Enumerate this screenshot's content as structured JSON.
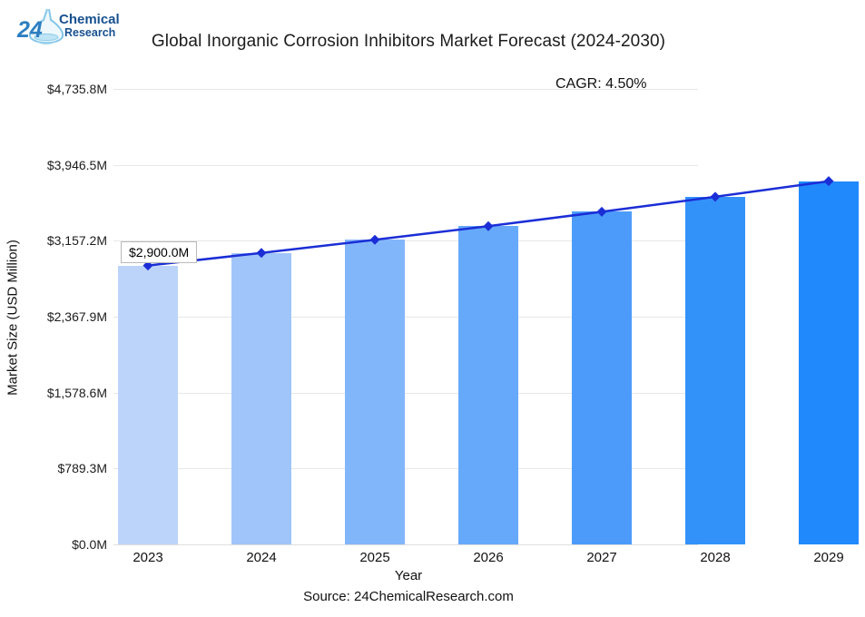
{
  "logo": {
    "number": "24",
    "line1": "Chemical",
    "line2": "Research"
  },
  "header": {
    "title": "Global Inorganic Corrosion Inhibitors Market Forecast (2024-2030)",
    "cagr_label": "CAGR: 4.50%"
  },
  "axes": {
    "y_title": "Market Size (USD Million)",
    "x_title": "Year"
  },
  "tooltip": {
    "text": "$2,900.0M"
  },
  "footer": {
    "source": "Source: 24ChemicalResearch.com"
  },
  "chart_data": {
    "type": "bar",
    "title": "Global Inorganic Corrosion Inhibitors Market Forecast (2024-2030)",
    "xlabel": "Year",
    "ylabel": "Market Size (USD Million)",
    "unit": "USD Million",
    "cagr_percent": 4.5,
    "categories": [
      "2023",
      "2024",
      "2025",
      "2026",
      "2027",
      "2028",
      "2029"
    ],
    "values": [
      2900.0,
      3030.5,
      3166.9,
      3309.4,
      3458.3,
      3613.9,
      3776.6
    ],
    "trend_line": {
      "overlaid_on_bars": true,
      "marker": "diamond"
    },
    "annotation": {
      "text": "$2,900.0M",
      "category": "2023"
    },
    "y_ticks": [
      0.0,
      789.3,
      1578.6,
      2367.9,
      3157.2,
      3946.5,
      4735.8
    ],
    "y_tick_labels": [
      "$0.0M",
      "$789.3M",
      "$1,578.6M",
      "$2,367.9M",
      "$3,157.2M",
      "$3,946.5M",
      "$4,735.8M"
    ],
    "ylim": [
      0,
      4735.8
    ],
    "grid": true,
    "legend": "none",
    "bar_colors": [
      "#bcd4fa",
      "#a0c5fa",
      "#82b6fa",
      "#66a9fa",
      "#4c9bfa",
      "#3392fa",
      "#2089fb"
    ],
    "line_color": "#1b2ed6",
    "grid_color": "#e7e7e7"
  }
}
